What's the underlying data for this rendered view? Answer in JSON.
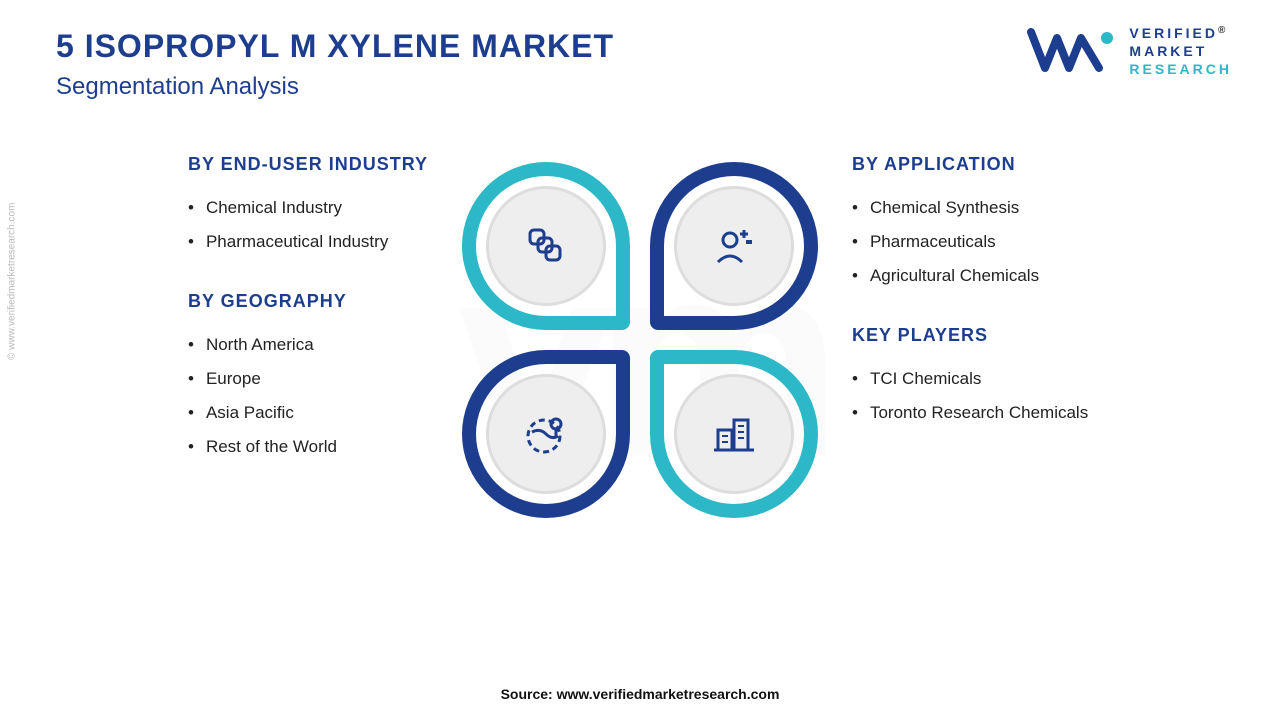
{
  "colors": {
    "primary": "#1d3d8f",
    "accent": "#2cb8c6",
    "text": "#222222",
    "inner_bg": "#eeeeee",
    "inner_border": "#dddddd",
    "bg": "#ffffff"
  },
  "header": {
    "title": "5 ISOPROPYL M XYLENE MARKET",
    "subtitle": "Segmentation Analysis"
  },
  "logo": {
    "line1": "VERIFIED",
    "line2": "MARKET",
    "line3": "RESEARCH",
    "mark": "®"
  },
  "side_watermark": "© www.verifiedmarketresearch.com",
  "segments": {
    "enduser": {
      "title": "BY END-USER INDUSTRY",
      "items": [
        "Chemical Industry",
        "Pharmaceutical Industry"
      ]
    },
    "geography": {
      "title": "BY GEOGRAPHY",
      "items": [
        "North America",
        "Europe",
        "Asia Pacific",
        "Rest of the World"
      ]
    },
    "application": {
      "title": "BY APPLICATION",
      "items": [
        "Chemical Synthesis",
        "Pharmaceuticals",
        "Agricultural Chemicals"
      ]
    },
    "keyplayers": {
      "title": "KEY PLAYERS",
      "items": [
        "TCI Chemicals",
        "Toronto Research Chemicals"
      ]
    }
  },
  "center_graphic": {
    "type": "petal-quad",
    "petals": [
      {
        "position": "tl",
        "border_color": "#2cb8c6",
        "icon": "layers-icon"
      },
      {
        "position": "tr",
        "border_color": "#1d3d8f",
        "icon": "person-icon"
      },
      {
        "position": "bl",
        "border_color": "#1d3d8f",
        "icon": "globe-pin-icon"
      },
      {
        "position": "br",
        "border_color": "#2cb8c6",
        "icon": "buildings-icon"
      }
    ],
    "petal_border_width": 14,
    "inner_circle_diameter": 120,
    "icon_size": 48
  },
  "source": "Source: www.verifiedmarketresearch.com"
}
